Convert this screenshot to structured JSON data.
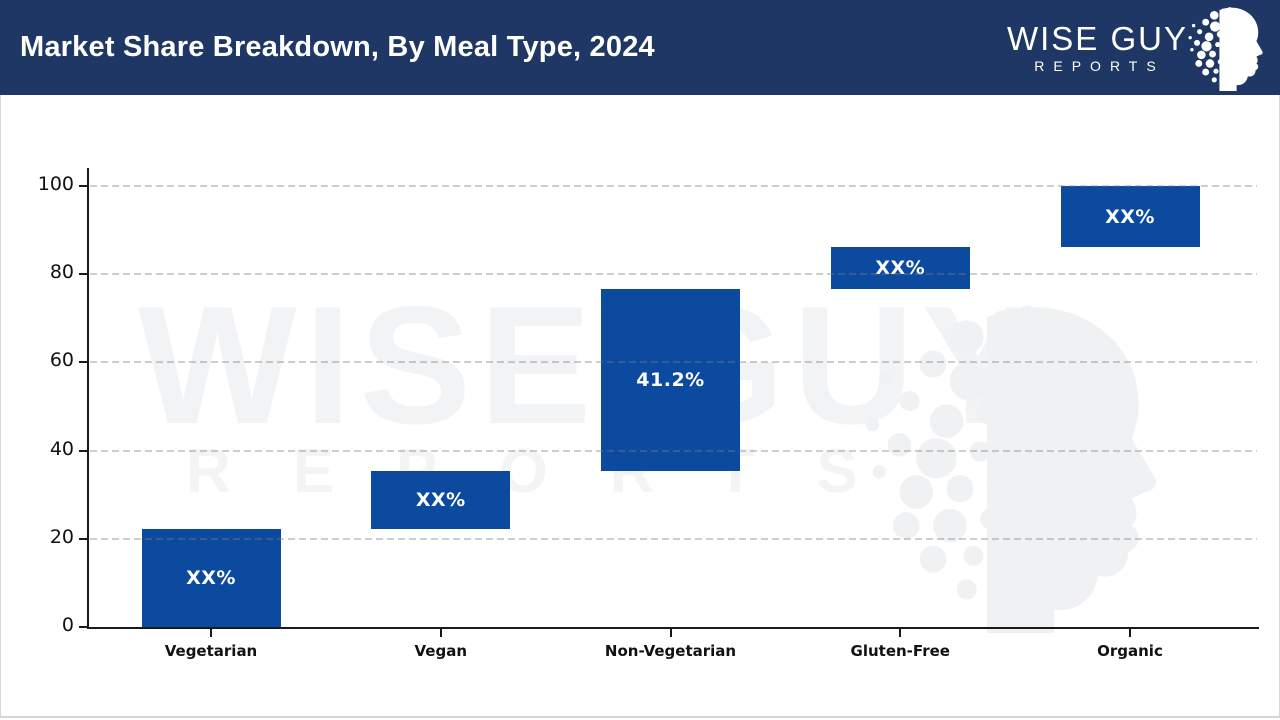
{
  "header": {
    "title": "Market Share Breakdown, By Meal Type, 2024",
    "logo": {
      "line1": "WISE GUY",
      "line2": "REPORTS"
    }
  },
  "watermark": {
    "line1": "WISE GUY",
    "line2": "REPORTS"
  },
  "chart_data": {
    "type": "bar",
    "subtype": "waterfall",
    "title": "Market Share Breakdown, By Meal Type, 2024",
    "categories": [
      "Vegetarian",
      "Vegan",
      "Non-Vegetarian",
      "Gluten-Free",
      "Organic"
    ],
    "segments": [
      {
        "category": "Vegetarian",
        "start": 0,
        "end": 22.2,
        "value": 22.2,
        "label": "XX%"
      },
      {
        "category": "Vegan",
        "start": 22.2,
        "end": 35.4,
        "value": 13.2,
        "label": "XX%"
      },
      {
        "category": "Non-Vegetarian",
        "start": 35.4,
        "end": 76.6,
        "value": 41.2,
        "label": "41.2%"
      },
      {
        "category": "Gluten-Free",
        "start": 76.6,
        "end": 86.1,
        "value": 9.5,
        "label": "XX%"
      },
      {
        "category": "Organic",
        "start": 86.1,
        "end": 100,
        "value": 13.9,
        "label": "XX%"
      }
    ],
    "xlabel": "",
    "ylabel": "",
    "ylim": [
      0,
      100
    ],
    "yticks": [
      0,
      20,
      40,
      60,
      80,
      100
    ],
    "grid": true,
    "grid_style": "dashed",
    "legend": "none",
    "bar_color": "#0b4a9e",
    "bar_label_color": "#ffffff",
    "header_color": "#1e3765"
  }
}
